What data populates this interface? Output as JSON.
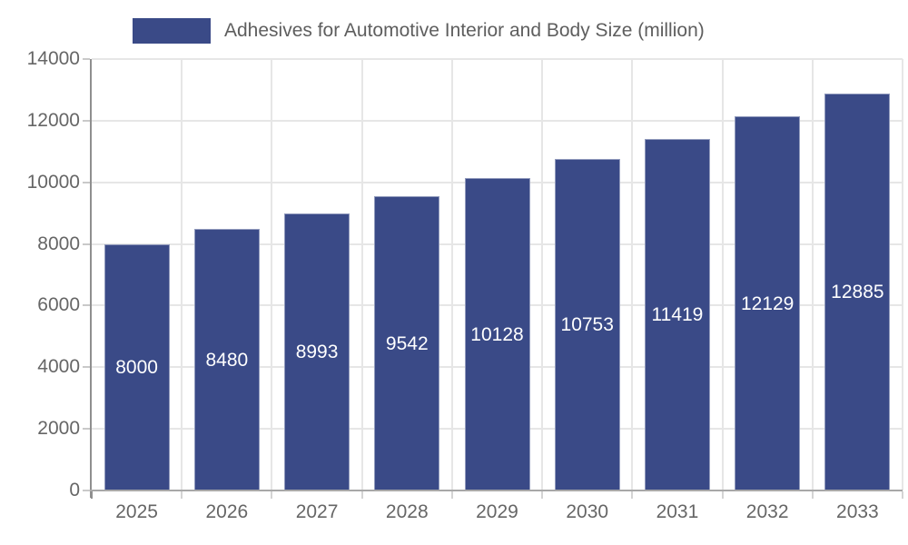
{
  "chart_data": {
    "type": "bar",
    "title": "Adhesives for Automotive Interior and Body Size (million)",
    "categories": [
      "2025",
      "2026",
      "2027",
      "2028",
      "2029",
      "2030",
      "2031",
      "2032",
      "2033"
    ],
    "values": [
      8000,
      8480,
      8993,
      9542,
      10128,
      10753,
      11419,
      12129,
      12885
    ],
    "xlabel": "",
    "ylabel": "",
    "ylim": [
      0,
      14000
    ],
    "ytick_step": 2000,
    "grid": true,
    "legend_position": "top-left",
    "value_labels": "inside-center",
    "colors": {
      "bar": "#3A4A87",
      "bar_border": "rgba(255,255,255,0.45)",
      "grid": "#e6e6e6",
      "y_axis_line": "#8f8f8f",
      "x_axis_line": "#a8a8a8",
      "axis_label_text": "#666666",
      "legend_text": "#5e5e5e",
      "value_label_text": "#ffffff",
      "background": "#ffffff"
    }
  }
}
